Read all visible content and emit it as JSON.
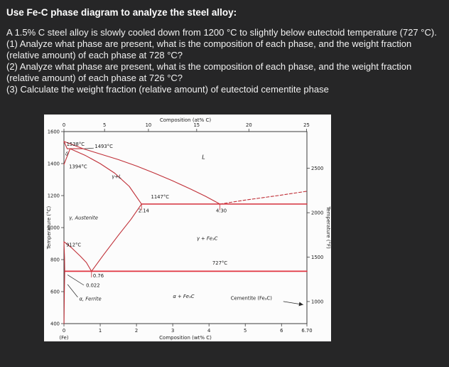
{
  "page": {
    "title": "Use Fe-C phase diagram to analyze the steel alloy:",
    "intro": "A 1.5% C steel alloy is slowly cooled down from 1200 °C to slightly below eutectoid temperature (727 °C).",
    "questions": [
      "(1) Analyze what phase are present, what is the composition of each phase, and the weight fraction (relative amount) of each phase at 728 °C?",
      "(2) Analyze what phase are present, what is the composition of each phase, and the weight fraction (relative amount) of each phase at 726 °C?",
      "(3) Calculate the weight fraction (relative amount) of eutectoid cementite phase"
    ]
  },
  "chart_data": {
    "type": "line",
    "xlim": [
      0,
      6.7
    ],
    "ylim": [
      400,
      1600
    ],
    "line_color": "#c03038",
    "top_axis": {
      "label": "Composition (at% C)",
      "ticks": [
        {
          "label": "0",
          "x": 0
        },
        {
          "label": "5",
          "x": 1.12
        },
        {
          "label": "10",
          "x": 2.33
        },
        {
          "label": "15",
          "x": 3.66
        },
        {
          "label": "20",
          "x": 5.1
        },
        {
          "label": "25",
          "x": 6.69
        }
      ]
    },
    "bottom_axis": {
      "label": "Composition (wt% C)",
      "origin_label": "(Fe)",
      "ticks": [
        {
          "label": "0",
          "x": 0
        },
        {
          "label": "1",
          "x": 1
        },
        {
          "label": "2",
          "x": 2
        },
        {
          "label": "3",
          "x": 3
        },
        {
          "label": "4",
          "x": 4
        },
        {
          "label": "5",
          "x": 5
        },
        {
          "label": "6",
          "x": 6
        },
        {
          "label": "6.70",
          "x": 6.7
        }
      ]
    },
    "left_axis": {
      "label": "Temperature (°C)",
      "ticks": [
        {
          "label": "400",
          "y": 400
        },
        {
          "label": "600",
          "y": 600
        },
        {
          "label": "800",
          "y": 800
        },
        {
          "label": "1000",
          "y": 1000
        },
        {
          "label": "1200",
          "y": 1200
        },
        {
          "label": "1400",
          "y": 1400
        },
        {
          "label": "1600",
          "y": 1600
        }
      ]
    },
    "right_axis": {
      "label": "Temperature (°F)",
      "ticks": [
        {
          "label": "1000",
          "y": 538
        },
        {
          "label": "1500",
          "y": 816
        },
        {
          "label": "2000",
          "y": 1093
        },
        {
          "label": "2500",
          "y": 1371
        }
      ]
    },
    "key_points": {
      "eutectic": {
        "wt_pct_C": 4.3,
        "temp_C": 1147
      },
      "eutectoid": {
        "wt_pct_C": 0.76,
        "temp_C": 727
      },
      "max_C_in_austenite": 2.14,
      "max_C_in_ferrite": 0.022,
      "cementite_composition": 6.7,
      "melting_Fe_C": 1538,
      "peritectic_C": 1493,
      "delta_to_gamma_C": 1394,
      "gamma_to_alpha_C": 912
    },
    "boundaries": [
      {
        "name": "liquidus",
        "points": [
          [
            0,
            1538
          ],
          [
            0.53,
            1493
          ],
          [
            1.0,
            1460
          ],
          [
            1.5,
            1425
          ],
          [
            2.0,
            1385
          ],
          [
            2.5,
            1340
          ],
          [
            3.0,
            1292
          ],
          [
            3.5,
            1240
          ],
          [
            3.9,
            1196
          ],
          [
            4.3,
            1147
          ]
        ]
      },
      {
        "name": "liquidus-extension-dashed",
        "points": [
          [
            4.3,
            1147
          ],
          [
            5.0,
            1172
          ],
          [
            5.9,
            1200
          ],
          [
            6.7,
            1227
          ]
        ],
        "dash": true
      },
      {
        "name": "delta-solidus",
        "points": [
          [
            0,
            1538
          ],
          [
            0.09,
            1493
          ]
        ]
      },
      {
        "name": "peritectic-line-1493C",
        "points": [
          [
            0.09,
            1493
          ],
          [
            0.53,
            1493
          ]
        ]
      },
      {
        "name": "delta-gamma-left",
        "points": [
          [
            0,
            1394
          ],
          [
            0.17,
            1493
          ]
        ]
      },
      {
        "name": "gamma-solidus",
        "points": [
          [
            0.17,
            1493
          ],
          [
            0.6,
            1450
          ],
          [
            1.0,
            1400
          ],
          [
            1.4,
            1340
          ],
          [
            1.8,
            1258
          ],
          [
            2.14,
            1147
          ]
        ]
      },
      {
        "name": "eutectic-line-1147C",
        "points": [
          [
            2.14,
            1147
          ],
          [
            6.7,
            1147
          ]
        ],
        "width": 1.5,
        "color": "#d5303c"
      },
      {
        "name": "acm",
        "points": [
          [
            0.76,
            727
          ],
          [
            1.1,
            832
          ],
          [
            1.5,
            952
          ],
          [
            1.85,
            1052
          ],
          [
            2.14,
            1147
          ]
        ]
      },
      {
        "name": "a3",
        "points": [
          [
            0,
            912
          ],
          [
            0.2,
            876
          ],
          [
            0.45,
            822
          ],
          [
            0.62,
            782
          ],
          [
            0.76,
            727
          ]
        ]
      },
      {
        "name": "alpha-gamma-left",
        "points": [
          [
            0,
            912
          ],
          [
            0.016,
            815
          ],
          [
            0.022,
            727
          ]
        ]
      },
      {
        "name": "eutectoid-line-727C",
        "points": [
          [
            0.022,
            727
          ],
          [
            6.7,
            727
          ]
        ],
        "width": 1.7,
        "color": "#e03440"
      },
      {
        "name": "alpha-solvus",
        "points": [
          [
            0.022,
            727
          ],
          [
            0.012,
            600
          ],
          [
            0.005,
            480
          ],
          [
            0.002,
            400
          ]
        ]
      },
      {
        "name": "eutectoid-composition-tick",
        "points": [
          [
            0.76,
            727
          ],
          [
            0.76,
            690
          ]
        ],
        "width": 0.8
      },
      {
        "name": "tick-2.14",
        "points": [
          [
            2.14,
            1147
          ],
          [
            2.14,
            1110
          ]
        ],
        "width": 0.8
      },
      {
        "name": "tick-4.30",
        "points": [
          [
            4.3,
            1147
          ],
          [
            4.3,
            1110
          ]
        ],
        "width": 0.8
      }
    ],
    "annotations": [
      {
        "text": "1538°C",
        "x": 0.07,
        "y": 1512,
        "anchor": "start"
      },
      {
        "text": "1493°C",
        "x": 0.85,
        "y": 1497,
        "anchor": "start"
      },
      {
        "text": "δ",
        "x": 0.04,
        "y": 1452,
        "anchor": "start",
        "italic": true
      },
      {
        "text": "1394°C",
        "x": 0.14,
        "y": 1372,
        "anchor": "start"
      },
      {
        "text": "γ+L",
        "x": 1.45,
        "y": 1308,
        "anchor": "middle",
        "italic": true
      },
      {
        "text": "L",
        "x": 3.85,
        "y": 1428,
        "anchor": "middle",
        "italic": true,
        "size": 8
      },
      {
        "text": "1147°C",
        "x": 2.65,
        "y": 1182,
        "anchor": "middle"
      },
      {
        "text": "2.14",
        "x": 2.2,
        "y": 1096,
        "anchor": "middle"
      },
      {
        "text": "4.30",
        "x": 4.34,
        "y": 1096,
        "anchor": "middle"
      },
      {
        "text": "γ, Austenite",
        "x": 0.14,
        "y": 1052,
        "anchor": "start",
        "italic": true
      },
      {
        "text": "912°C",
        "x": 0.06,
        "y": 882,
        "anchor": "start"
      },
      {
        "text": "γ + Fe₃C",
        "x": 3.95,
        "y": 922,
        "anchor": "middle",
        "italic": true
      },
      {
        "text": "727°C",
        "x": 4.3,
        "y": 770,
        "anchor": "middle"
      },
      {
        "text": "0.76",
        "x": 0.95,
        "y": 688,
        "anchor": "middle"
      },
      {
        "text": "0.022",
        "x": 0.8,
        "y": 628,
        "anchor": "middle"
      },
      {
        "text": "α, Ferrite",
        "x": 0.42,
        "y": 545,
        "anchor": "start",
        "italic": true
      },
      {
        "text": "α + Fe₃C",
        "x": 3.3,
        "y": 560,
        "anchor": "middle",
        "italic": true
      },
      {
        "text": "Cementite (Fe₃C)",
        "x": 4.6,
        "y": 550,
        "anchor": "start"
      }
    ],
    "pointers": [
      {
        "name": "pointer-1493",
        "from": [
          0.82,
          1497
        ],
        "to": [
          0.56,
          1493
        ]
      },
      {
        "name": "pointer-0022",
        "from": [
          0.55,
          640
        ],
        "to": [
          0.1,
          705
        ]
      },
      {
        "name": "pointer-ferrite",
        "from": [
          0.38,
          565
        ],
        "to": [
          0.1,
          645
        ]
      },
      {
        "name": "cementite-arrow",
        "from": [
          6.05,
          538
        ],
        "to": [
          6.6,
          518
        ],
        "arrow": true
      }
    ]
  }
}
